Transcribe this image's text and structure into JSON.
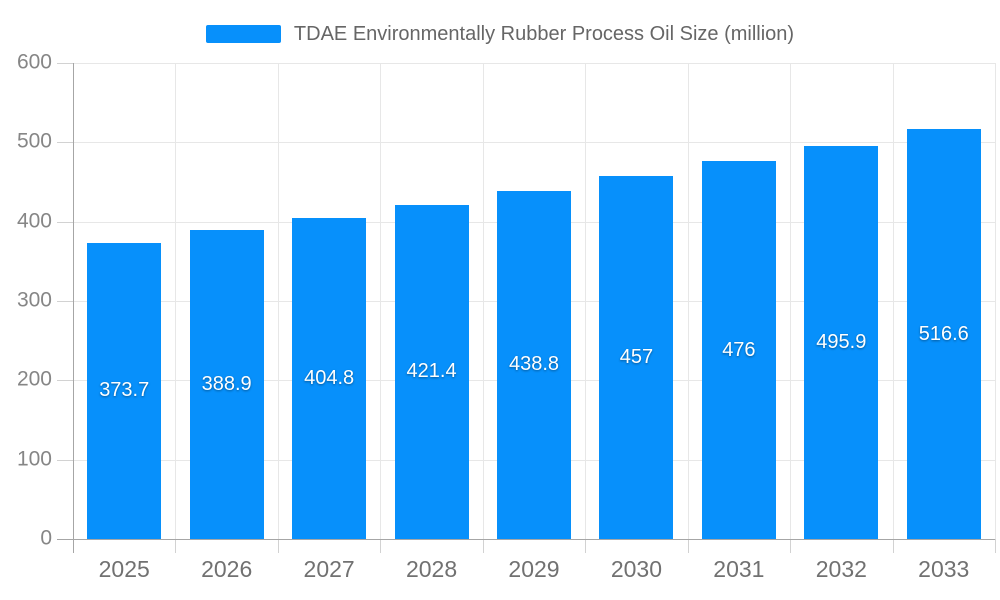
{
  "legend": {
    "label": "TDAE Environmentally Rubber Process Oil Size (million)"
  },
  "chart_data": {
    "type": "bar",
    "title": "TDAE Environmentally Rubber Process Oil Size (million)",
    "series": [
      {
        "name": "TDAE Environmentally Rubber Process Oil Size (million)",
        "values": [
          373.7,
          388.9,
          404.8,
          421.4,
          438.8,
          457,
          476,
          495.9,
          516.6
        ],
        "color": "#0790FB"
      }
    ],
    "categories": [
      "2025",
      "2026",
      "2027",
      "2028",
      "2029",
      "2030",
      "2031",
      "2032",
      "2033"
    ],
    "data_labels": [
      "373.7",
      "388.9",
      "404.8",
      "421.4",
      "438.8",
      "457",
      "476",
      "495.9",
      "516.6"
    ],
    "data_label_position": "bar-center",
    "xlabel": "",
    "ylabel": "",
    "ylim": [
      0,
      600
    ],
    "y_ticks": [
      0,
      100,
      200,
      300,
      400,
      500,
      600
    ],
    "grid": true,
    "legend_position": "top"
  },
  "colors": {
    "bar": "#0790FB",
    "grid": "#e7e7e7",
    "axis": "#a6a6a6",
    "tick": "#d2d2d2",
    "y_label": "#868686",
    "x_label": "#717171",
    "legend_text": "#666666",
    "data_label": "#ffffff",
    "background": "#ffffff"
  }
}
